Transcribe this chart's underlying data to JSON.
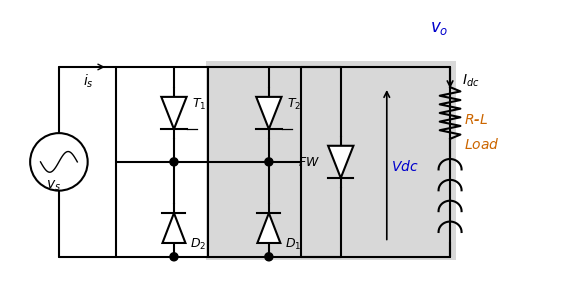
{
  "bg_color": "#ffffff",
  "circuit_line_color": "#000000",
  "shadow_color": "#d8d8d8",
  "text_color_blue": "#0000cc",
  "text_color_orange": "#cc6600",
  "text_color_black": "#000000",
  "fig_width": 5.78,
  "fig_height": 2.95
}
